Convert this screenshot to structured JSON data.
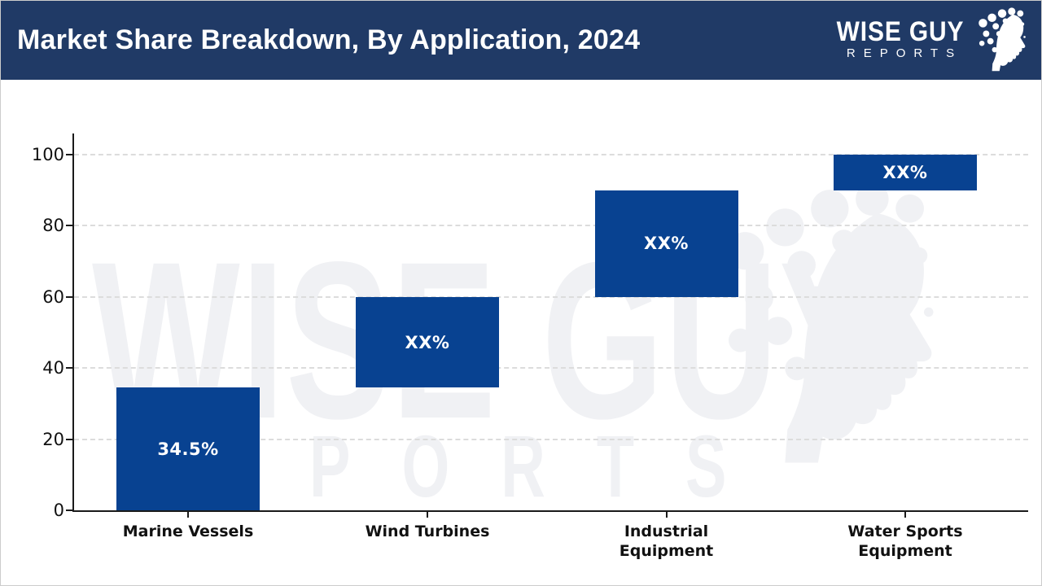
{
  "header": {
    "title": "Market Share Breakdown, By Application, 2024",
    "brand": {
      "name": "WISE GUY",
      "subtitle": "REPORTS"
    }
  },
  "watermark": {
    "name": "WISE GUY",
    "subtitle": "REPORTS"
  },
  "colors": {
    "header_bg": "#203a66",
    "bar_fill": "#084291",
    "bar_label": "#ffffff",
    "grid_line": "#dcdcdc",
    "axis_line": "#1a1a1a",
    "tick_label": "#111111",
    "watermark": "#f0f1f4"
  },
  "chart_data": {
    "type": "bar",
    "variant": "waterfall",
    "title": "Market Share Breakdown, By Application, 2024",
    "categories": [
      "Marine Vessels",
      "Wind Turbines",
      "Industrial Equipment",
      "Water Sports Equipment"
    ],
    "tick_labels": [
      "Marine Vessels",
      "Wind Turbines",
      "Industrial\nEquipment",
      "Water Sports\nEquipment"
    ],
    "segments": [
      {
        "category": "Marine Vessels",
        "start": 0,
        "end": 34.5,
        "label": "34.5%"
      },
      {
        "category": "Wind Turbines",
        "start": 34.5,
        "end": 60,
        "label": "XX%"
      },
      {
        "category": "Industrial Equipment",
        "start": 60,
        "end": 90,
        "label": "XX%"
      },
      {
        "category": "Water Sports Equipment",
        "start": 90,
        "end": 100,
        "label": "XX%"
      }
    ],
    "yticks": [
      0,
      20,
      40,
      60,
      80,
      100
    ],
    "ylim": [
      0,
      106
    ],
    "xlabel": "",
    "ylabel": "",
    "grid": "horizontal-dashed",
    "legend": "none"
  }
}
